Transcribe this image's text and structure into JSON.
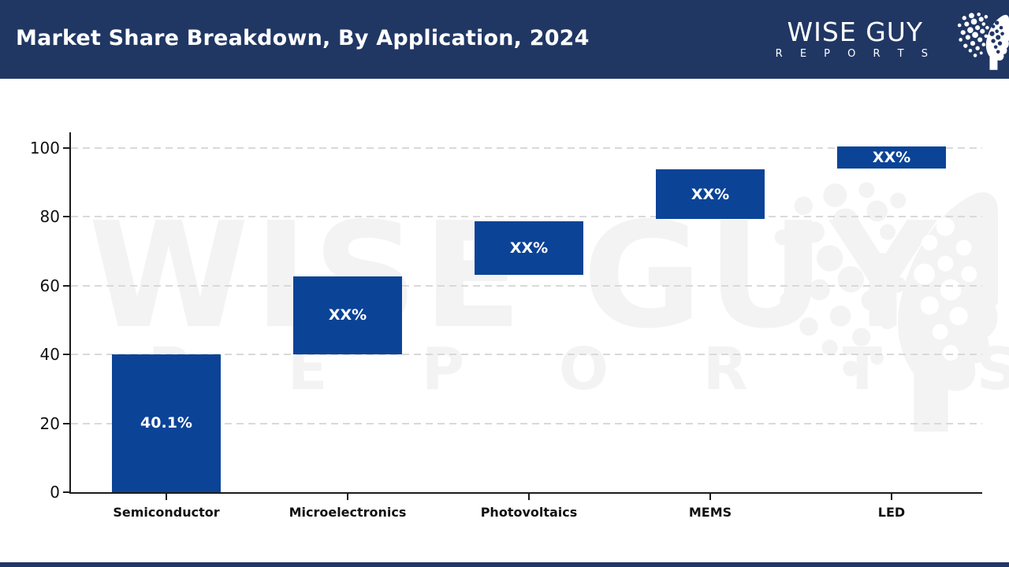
{
  "header": {
    "title": "Market Share Breakdown, By Application, 2024",
    "logo": {
      "wordmark": "WISE GUY",
      "subtext": "R E P O R T S"
    }
  },
  "watermark": {
    "wordmark": "WISE GUY",
    "subtext": "R E P O R T S"
  },
  "colors": {
    "header_bg": "#203764",
    "footer_bg": "#203764",
    "bar_fill": "#0b4397",
    "bar_label": "#ffffff",
    "gridline": "#d9d9d9",
    "axis": "#1c1c1c",
    "tick_label": "#111111",
    "watermark": "#f3f3f3"
  },
  "chart_data": {
    "type": "bar",
    "subtype": "waterfall",
    "title": "Market Share Breakdown, By Application, 2024",
    "categories": [
      "Semiconductor",
      "Microelectronics",
      "Photovoltaics",
      "MEMS",
      "LED"
    ],
    "segments": [
      {
        "category": "Semiconductor",
        "start": 0,
        "end": 40.1,
        "label": "40.1%"
      },
      {
        "category": "Microelectronics",
        "start": 40.1,
        "end": 62.6,
        "label": "XX%"
      },
      {
        "category": "Photovoltaics",
        "start": 63.0,
        "end": 78.6,
        "label": "XX%"
      },
      {
        "category": "MEMS",
        "start": 79.3,
        "end": 93.7,
        "label": "XX%"
      },
      {
        "category": "LED",
        "start": 94.0,
        "end": 100.4,
        "label": "XX%"
      }
    ],
    "yticks": [
      0,
      20,
      40,
      60,
      80,
      100
    ],
    "ylim": [
      0,
      104.5
    ],
    "xlabel": "",
    "ylabel": "",
    "grid": "horizontal-dashed",
    "legend": "none"
  }
}
